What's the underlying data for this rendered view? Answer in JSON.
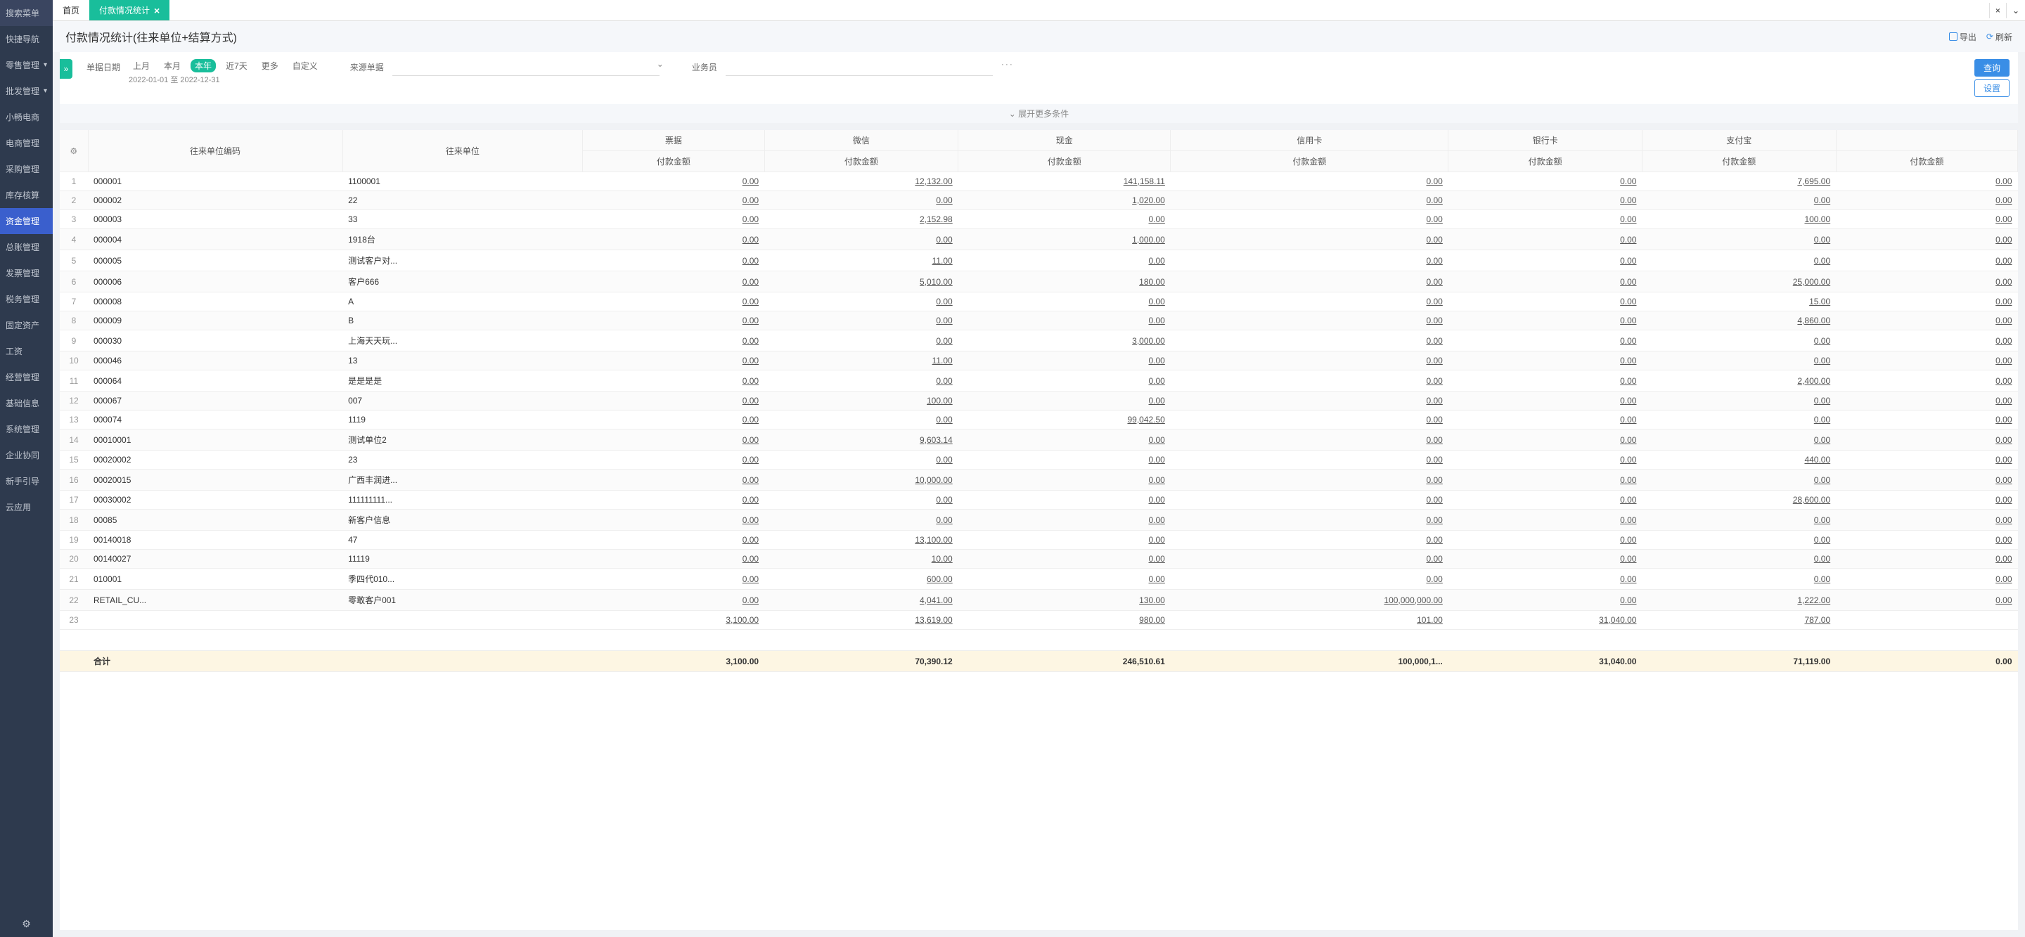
{
  "sidebar": {
    "items": [
      {
        "label": "搜索菜单",
        "expand": false
      },
      {
        "label": "快捷导航",
        "expand": false
      },
      {
        "label": "零售管理",
        "expand": true
      },
      {
        "label": "批发管理",
        "expand": true
      },
      {
        "label": "小畅电商",
        "expand": false
      },
      {
        "label": "电商管理",
        "expand": false
      },
      {
        "label": "采购管理",
        "expand": false
      },
      {
        "label": "库存核算",
        "expand": false
      },
      {
        "label": "资金管理",
        "expand": false,
        "active": true
      },
      {
        "label": "总账管理",
        "expand": false
      },
      {
        "label": "发票管理",
        "expand": false
      },
      {
        "label": "税务管理",
        "expand": false
      },
      {
        "label": "固定资产",
        "expand": false
      },
      {
        "label": "工资",
        "expand": false
      },
      {
        "label": "经营管理",
        "expand": false
      },
      {
        "label": "基础信息",
        "expand": false
      },
      {
        "label": "系统管理",
        "expand": false
      },
      {
        "label": "企业协同",
        "expand": false
      },
      {
        "label": "新手引导",
        "expand": false
      },
      {
        "label": "云应用",
        "expand": false
      }
    ],
    "gear": "⚙"
  },
  "tabs": {
    "home": "首页",
    "active": "付款情况统计",
    "close": "×"
  },
  "header": {
    "title": "付款情况统计(往来单位+结算方式)",
    "export": "导出",
    "refresh": "刷新"
  },
  "filters": {
    "collapse": "»",
    "date_label": "单据日期",
    "quick": [
      "上月",
      "本月",
      "本年",
      "近7天",
      "更多",
      "自定义"
    ],
    "quick_active": "本年",
    "range": "2022-01-01 至 2022-12-31",
    "src_label": "来源单据",
    "src_value": "",
    "sales_label": "业务员",
    "sales_value": "",
    "more": "···",
    "btn_query": "查询",
    "btn_set": "设置",
    "expand": "⌄ 展开更多条件"
  },
  "table": {
    "gear": "⚙",
    "h_code": "往来单位编码",
    "h_unit": "往来单位",
    "groups": [
      "票据",
      "微信",
      "现金",
      "信用卡",
      "银行卡",
      "支付宝",
      ""
    ],
    "h_amt": "付款金额",
    "rows": [
      {
        "i": 1,
        "code": "000001",
        "unit": "1100001",
        "v": [
          "0.00",
          "12,132.00",
          "141,158.11",
          "0.00",
          "0.00",
          "7,695.00",
          "0.00"
        ]
      },
      {
        "i": 2,
        "code": "000002",
        "unit": "22",
        "v": [
          "0.00",
          "0.00",
          "1,020.00",
          "0.00",
          "0.00",
          "0.00",
          "0.00"
        ]
      },
      {
        "i": 3,
        "code": "000003",
        "unit": "33",
        "v": [
          "0.00",
          "2,152.98",
          "0.00",
          "0.00",
          "0.00",
          "100.00",
          "0.00"
        ]
      },
      {
        "i": 4,
        "code": "000004",
        "unit": "1918台",
        "v": [
          "0.00",
          "0.00",
          "1,000.00",
          "0.00",
          "0.00",
          "0.00",
          "0.00"
        ]
      },
      {
        "i": 5,
        "code": "000005",
        "unit": "测试客户对...",
        "v": [
          "0.00",
          "11.00",
          "0.00",
          "0.00",
          "0.00",
          "0.00",
          "0.00"
        ]
      },
      {
        "i": 6,
        "code": "000006",
        "unit": "客户666",
        "v": [
          "0.00",
          "5,010.00",
          "180.00",
          "0.00",
          "0.00",
          "25,000.00",
          "0.00"
        ]
      },
      {
        "i": 7,
        "code": "000008",
        "unit": "A",
        "v": [
          "0.00",
          "0.00",
          "0.00",
          "0.00",
          "0.00",
          "15.00",
          "0.00"
        ]
      },
      {
        "i": 8,
        "code": "000009",
        "unit": "B",
        "v": [
          "0.00",
          "0.00",
          "0.00",
          "0.00",
          "0.00",
          "4,860.00",
          "0.00"
        ]
      },
      {
        "i": 9,
        "code": "000030",
        "unit": "上海天天玩...",
        "v": [
          "0.00",
          "0.00",
          "3,000.00",
          "0.00",
          "0.00",
          "0.00",
          "0.00"
        ]
      },
      {
        "i": 10,
        "code": "000046",
        "unit": "13",
        "v": [
          "0.00",
          "11.00",
          "0.00",
          "0.00",
          "0.00",
          "0.00",
          "0.00"
        ]
      },
      {
        "i": 11,
        "code": "000064",
        "unit": "是是是是",
        "v": [
          "0.00",
          "0.00",
          "0.00",
          "0.00",
          "0.00",
          "2,400.00",
          "0.00"
        ]
      },
      {
        "i": 12,
        "code": "000067",
        "unit": "007",
        "v": [
          "0.00",
          "100.00",
          "0.00",
          "0.00",
          "0.00",
          "0.00",
          "0.00"
        ]
      },
      {
        "i": 13,
        "code": "000074",
        "unit": "1119",
        "v": [
          "0.00",
          "0.00",
          "99,042.50",
          "0.00",
          "0.00",
          "0.00",
          "0.00"
        ]
      },
      {
        "i": 14,
        "code": "00010001",
        "unit": "测试单位2",
        "v": [
          "0.00",
          "9,603.14",
          "0.00",
          "0.00",
          "0.00",
          "0.00",
          "0.00"
        ]
      },
      {
        "i": 15,
        "code": "00020002",
        "unit": "23",
        "v": [
          "0.00",
          "0.00",
          "0.00",
          "0.00",
          "0.00",
          "440.00",
          "0.00"
        ]
      },
      {
        "i": 16,
        "code": "00020015",
        "unit": "广西丰润进...",
        "v": [
          "0.00",
          "10,000.00",
          "0.00",
          "0.00",
          "0.00",
          "0.00",
          "0.00"
        ]
      },
      {
        "i": 17,
        "code": "00030002",
        "unit": "111111111...",
        "v": [
          "0.00",
          "0.00",
          "0.00",
          "0.00",
          "0.00",
          "28,600.00",
          "0.00"
        ]
      },
      {
        "i": 18,
        "code": "00085",
        "unit": "新客户信息",
        "v": [
          "0.00",
          "0.00",
          "0.00",
          "0.00",
          "0.00",
          "0.00",
          "0.00"
        ]
      },
      {
        "i": 19,
        "code": "00140018",
        "unit": "47",
        "v": [
          "0.00",
          "13,100.00",
          "0.00",
          "0.00",
          "0.00",
          "0.00",
          "0.00"
        ]
      },
      {
        "i": 20,
        "code": "00140027",
        "unit": "11119",
        "v": [
          "0.00",
          "10.00",
          "0.00",
          "0.00",
          "0.00",
          "0.00",
          "0.00"
        ]
      },
      {
        "i": 21,
        "code": "010001",
        "unit": "季四代010...",
        "v": [
          "0.00",
          "600.00",
          "0.00",
          "0.00",
          "0.00",
          "0.00",
          "0.00"
        ]
      },
      {
        "i": 22,
        "code": "RETAIL_CU...",
        "unit": "零敢客户001",
        "v": [
          "0.00",
          "4,041.00",
          "130.00",
          "100,000,000.00",
          "0.00",
          "1,222.00",
          "0.00"
        ]
      },
      {
        "i": 23,
        "code": "",
        "unit": "",
        "v": [
          "3,100.00",
          "13,619.00",
          "980.00",
          "101.00",
          "31,040.00",
          "787.00",
          ""
        ]
      }
    ],
    "sum_label": "合计",
    "sum": [
      "3,100.00",
      "70,390.12",
      "246,510.61",
      "100,000,1...",
      "31,040.00",
      "71,119.00",
      "0.00"
    ]
  }
}
